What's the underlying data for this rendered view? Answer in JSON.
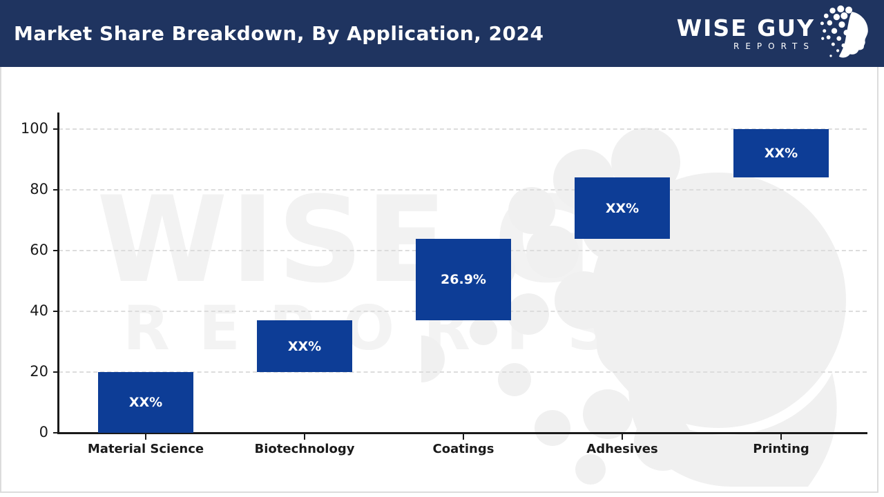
{
  "header": {
    "title": "Market Share Breakdown, By Application, 2024",
    "logo": {
      "line1": "WISE GUY",
      "line2": "REPORTS"
    }
  },
  "watermark": {
    "line1": "WISE GUY",
    "line2": "REPORTS"
  },
  "colors": {
    "header_bg": "#1f3460",
    "bar": "#0d3d96",
    "bar_label": "#ffffff",
    "axis": "#1a1a1a",
    "gridline": "#dcdcdc",
    "watermark": "#f2f2f2",
    "frame_border": "#dcdcdc"
  },
  "chart_data": {
    "type": "bar",
    "subtype": "waterfall",
    "title": "Market Share Breakdown, By Application, 2024",
    "categories": [
      "Material Science",
      "Biotechnology",
      "Coatings",
      "Adhesives",
      "Printing"
    ],
    "segments": [
      {
        "category": "Material Science",
        "start": 0,
        "end": 20,
        "label": "XX%"
      },
      {
        "category": "Biotechnology",
        "start": 20,
        "end": 37,
        "label": "XX%"
      },
      {
        "category": "Coatings",
        "start": 37,
        "end": 63.9,
        "label": "26.9%"
      },
      {
        "category": "Adhesives",
        "start": 63.9,
        "end": 84,
        "label": "XX%"
      },
      {
        "category": "Printing",
        "start": 84,
        "end": 100,
        "label": "XX%"
      }
    ],
    "yticks": [
      0,
      20,
      40,
      60,
      80,
      100
    ],
    "ylim": [
      0,
      105
    ],
    "xlabel": "",
    "ylabel": "",
    "legend": "none",
    "grid": "horizontal-dashed"
  }
}
